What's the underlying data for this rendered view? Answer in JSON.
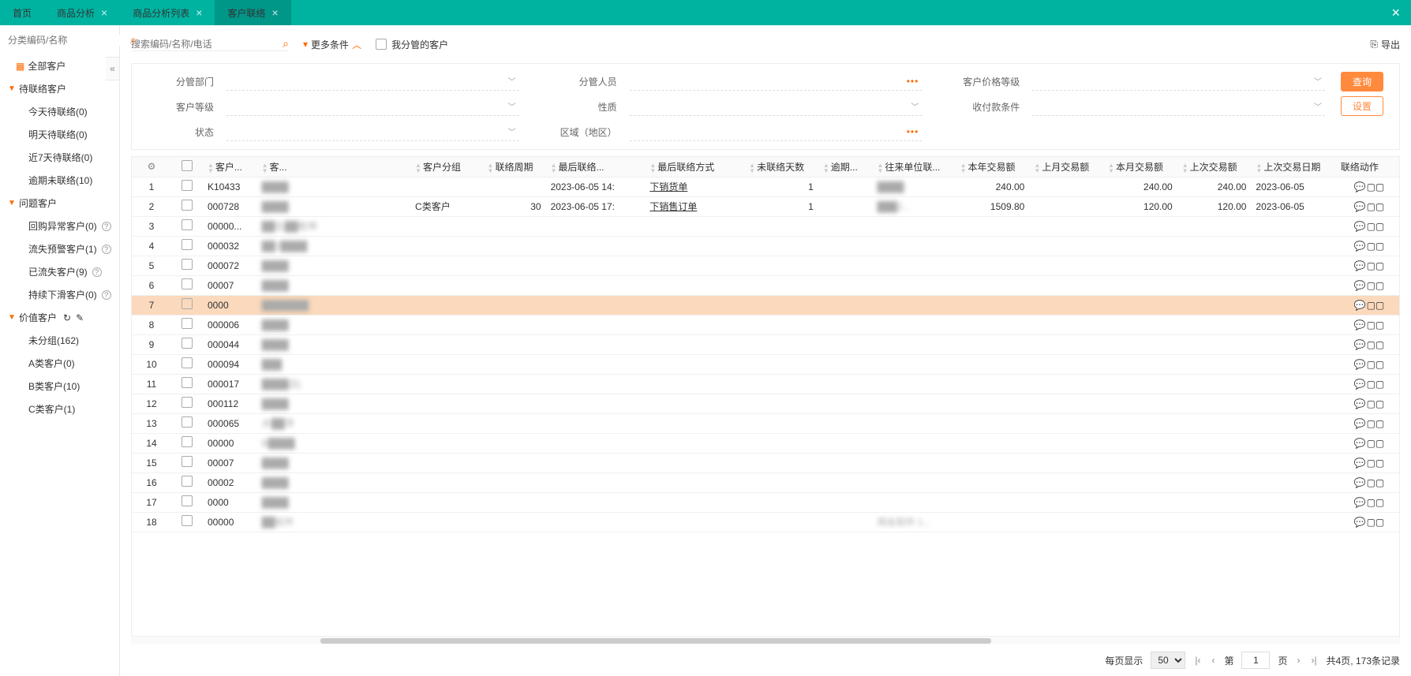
{
  "tabs": [
    "首页",
    "商品分析",
    "商品分析列表",
    "客户联络"
  ],
  "activeTab": 3,
  "sidebar": {
    "searchPlaceholder": "分类编码/名称",
    "root": "全部客户",
    "groups": [
      {
        "label": "待联络客户",
        "children": [
          "今天待联络(0)",
          "明天待联络(0)",
          "近7天待联络(0)",
          "逾期未联络(10)"
        ]
      },
      {
        "label": "问题客户",
        "children": [
          "回购异常客户(0)",
          "流失预警客户(1)",
          "已流失客户(9)",
          "持续下滑客户(0)"
        ],
        "q": true
      },
      {
        "label": "价值客户",
        "extra": true,
        "children": [
          "未分组(162)",
          "A类客户(0)",
          "B类客户(10)",
          "C类客户(1)"
        ]
      }
    ]
  },
  "toolbar": {
    "searchPlaceholder": "搜索编码/名称/电话",
    "moreCond": "更多条件",
    "myCustomers": "我分管的客户",
    "export": "导出"
  },
  "filters": {
    "labels": [
      "分管部门",
      "分管人员",
      "客户价格等级",
      "客户等级",
      "性质",
      "收付款条件",
      "状态",
      "区域（地区）"
    ],
    "queryBtn": "查询",
    "settingsBtn": "设置"
  },
  "columns": [
    "客户...",
    "客...",
    "客户分组",
    "联络周期",
    "最后联络...",
    "最后联络方式",
    "未联络天数",
    "逾期...",
    "往来单位联...",
    "本年交易额",
    "上月交易额",
    "本月交易额",
    "上次交易额",
    "上次交易日期",
    "联络动作"
  ],
  "rows": [
    {
      "n": 1,
      "code": "K10433",
      "name": "████",
      "group": "",
      "cycle": "",
      "last": "2023-06-05 14:",
      "way": "下销货单",
      "days": "1",
      "over": "",
      "contact": "████",
      "y": "240.00",
      "lm": "",
      "tm": "240.00",
      "lt": "240.00",
      "ld": "2023-06-05"
    },
    {
      "n": 2,
      "code": "000728",
      "name": "████",
      "group": "C类客户",
      "cycle": "30",
      "last": "2023-06-05 17:",
      "way": "下销售订单",
      "days": "1",
      "over": "",
      "contact": "███2...",
      "y": "1509.80",
      "lm": "",
      "tm": "120.00",
      "lt": "120.00",
      "ld": "2023-06-05"
    },
    {
      "n": 3,
      "code": "00000...",
      "name": "██生██乾坤",
      "group": "",
      "cycle": "",
      "last": "",
      "way": "",
      "days": "",
      "over": "",
      "contact": "",
      "y": "",
      "lm": "",
      "tm": "",
      "lt": "",
      "ld": ""
    },
    {
      "n": 4,
      "code": "000032",
      "name": "██2████",
      "group": "",
      "cycle": "",
      "last": "",
      "way": "",
      "days": "",
      "over": "",
      "contact": "",
      "y": "",
      "lm": "",
      "tm": "",
      "lt": "",
      "ld": ""
    },
    {
      "n": 5,
      "code": "000072",
      "name": "████",
      "group": "",
      "cycle": "",
      "last": "",
      "way": "",
      "days": "",
      "over": "",
      "contact": "",
      "y": "",
      "lm": "",
      "tm": "",
      "lt": "",
      "ld": ""
    },
    {
      "n": 6,
      "code": "00007",
      "name": "████",
      "group": "",
      "cycle": "",
      "last": "",
      "way": "",
      "days": "",
      "over": "",
      "contact": "",
      "y": "",
      "lm": "",
      "tm": "",
      "lt": "",
      "ld": ""
    },
    {
      "n": 7,
      "code": "0000",
      "name": "███████",
      "group": "",
      "cycle": "",
      "last": "",
      "way": "",
      "days": "",
      "over": "",
      "contact": "",
      "y": "",
      "lm": "",
      "tm": "",
      "lt": "",
      "ld": "",
      "hl": true
    },
    {
      "n": 8,
      "code": "000006",
      "name": "████",
      "group": "",
      "cycle": "",
      "last": "",
      "way": "",
      "days": "",
      "over": "",
      "contact": "",
      "y": "",
      "lm": "",
      "tm": "",
      "lt": "",
      "ld": ""
    },
    {
      "n": 9,
      "code": "000044",
      "name": "████",
      "group": "",
      "cycle": "",
      "last": "",
      "way": "",
      "days": "",
      "over": "",
      "contact": "",
      "y": "",
      "lm": "",
      "tm": "",
      "lt": "",
      "ld": ""
    },
    {
      "n": 10,
      "code": "000094",
      "name": "███",
      "group": "",
      "cycle": "",
      "last": "",
      "way": "",
      "days": "",
      "over": "",
      "contact": "",
      "y": "",
      "lm": "",
      "tm": "",
      "lt": "",
      "ld": ""
    },
    {
      "n": 11,
      "code": "000017",
      "name": "████店)",
      "group": "",
      "cycle": "",
      "last": "",
      "way": "",
      "days": "",
      "over": "",
      "contact": "",
      "y": "",
      "lm": "",
      "tm": "",
      "lt": "",
      "ld": ""
    },
    {
      "n": 12,
      "code": "000112",
      "name": "████",
      "group": "",
      "cycle": "",
      "last": "",
      "way": "",
      "days": "",
      "over": "",
      "contact": "",
      "y": "",
      "lm": "",
      "tm": "",
      "lt": "",
      "ld": ""
    },
    {
      "n": 13,
      "code": "000065",
      "name": "乡██萍",
      "group": "",
      "cycle": "",
      "last": "",
      "way": "",
      "days": "",
      "over": "",
      "contact": "",
      "y": "",
      "lm": "",
      "tm": "",
      "lt": "",
      "ld": ""
    },
    {
      "n": 14,
      "code": "00000",
      "name": "B████",
      "group": "",
      "cycle": "",
      "last": "",
      "way": "",
      "days": "",
      "over": "",
      "contact": "",
      "y": "",
      "lm": "",
      "tm": "",
      "lt": "",
      "ld": ""
    },
    {
      "n": 15,
      "code": "00007",
      "name": "████",
      "group": "",
      "cycle": "",
      "last": "",
      "way": "",
      "days": "",
      "over": "",
      "contact": "",
      "y": "",
      "lm": "",
      "tm": "",
      "lt": "",
      "ld": ""
    },
    {
      "n": 16,
      "code": "00002",
      "name": "████",
      "group": "",
      "cycle": "",
      "last": "",
      "way": "",
      "days": "",
      "over": "",
      "contact": "",
      "y": "",
      "lm": "",
      "tm": "",
      "lt": "",
      "ld": ""
    },
    {
      "n": 17,
      "code": "0000",
      "name": "████",
      "group": "",
      "cycle": "",
      "last": "",
      "way": "",
      "days": "",
      "over": "",
      "contact": "",
      "y": "",
      "lm": "",
      "tm": "",
      "lt": "",
      "ld": ""
    },
    {
      "n": 18,
      "code": "00000",
      "name": "██软件",
      "group": "",
      "cycle": "",
      "last": "",
      "way": "",
      "days": "",
      "over": "",
      "contact": "用友软件 1...",
      "y": "",
      "lm": "",
      "tm": "",
      "lt": "",
      "ld": ""
    }
  ],
  "pager": {
    "perPageLabel": "每页显示",
    "perPage": "50",
    "pageLabel1": "第",
    "page": "1",
    "pageLabel2": "页",
    "total": "共4页, 173条记录"
  },
  "colors": {
    "brand": "#00b3a1",
    "accent": "#ff6a00",
    "highlight": "#fbd9bc"
  }
}
